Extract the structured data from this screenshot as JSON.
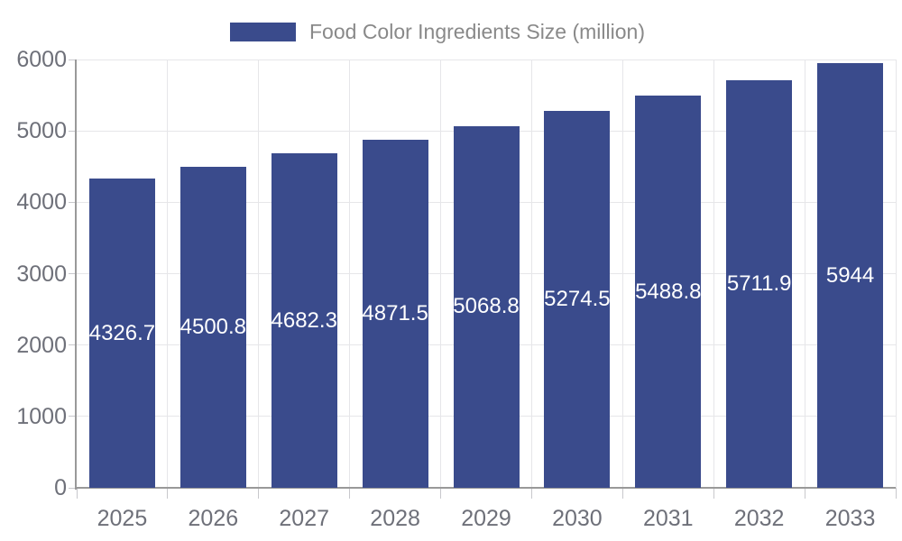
{
  "chart_data": {
    "type": "bar",
    "title": "Food Color Ingredients Size (million)",
    "legend": {
      "label": "Food Color Ingredients Size (million)",
      "position": "top-center"
    },
    "categories": [
      "2025",
      "2026",
      "2027",
      "2028",
      "2029",
      "2030",
      "2031",
      "2032",
      "2033"
    ],
    "series": [
      {
        "name": "Food Color Ingredients Size (million)",
        "values": [
          4326.7,
          4500.8,
          4682.3,
          4871.5,
          5068.8,
          5274.5,
          5488.8,
          5711.9,
          5944
        ]
      }
    ],
    "xlabel": "",
    "ylabel": "",
    "ylim": [
      0,
      6000
    ],
    "yticks": [
      0,
      1000,
      2000,
      3000,
      4000,
      5000,
      6000
    ],
    "grid": "horizontal and vertical light gridlines on",
    "value_label_style": "white text centered inside each bar",
    "colors": {
      "bar": "#3A4B8C",
      "axis_line": "#999999",
      "tick": "#c8c8cc",
      "grid_line": "#e6e6e9",
      "axis_label": "#6E7079",
      "legend_text": "#898989",
      "value_label": "#ffffff",
      "background": "#ffffff"
    }
  }
}
